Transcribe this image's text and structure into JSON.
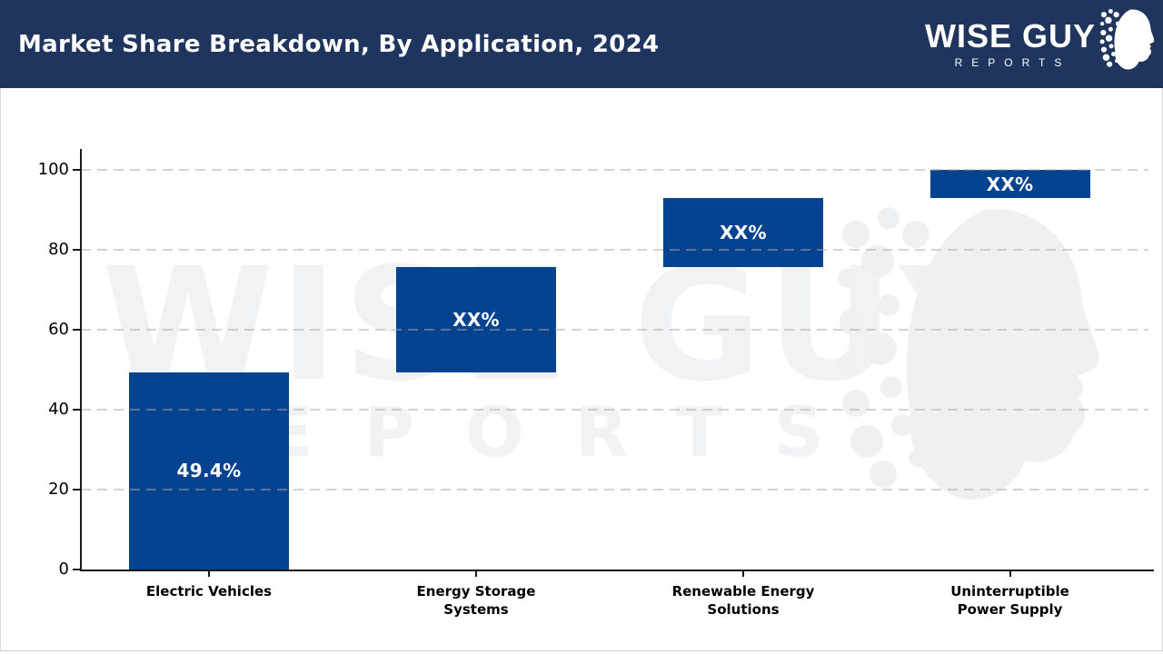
{
  "header": {
    "title": "Market Share Breakdown, By Application, 2024",
    "logo": {
      "name_line": "WISE GUY",
      "sub_line": "REPORTS"
    }
  },
  "watermark": {
    "big_text": "WISE GUY.",
    "sub_text": "REPORTS"
  },
  "colors": {
    "header_bg": "#1f355e",
    "bar_blue": "#05428f",
    "axis": "#1a1a1a",
    "watermark_gray": "#f1f2f4"
  },
  "chart_data": {
    "type": "bar",
    "variant": "waterfall",
    "title": "Market Share Breakdown, By Application, 2024",
    "ylim": [
      0,
      100
    ],
    "yticks": [
      0,
      20,
      40,
      60,
      80,
      100
    ],
    "grid": "dashed horizontal gridlines at each y tick",
    "legend": "none",
    "bar_color": "#05428f",
    "categories": [
      {
        "name": "Electric Vehicles",
        "label_lines": [
          "Electric Vehicles"
        ],
        "bar_label": "49.4%",
        "start": 0,
        "end": 49.4,
        "value_shown": true
      },
      {
        "name": "Energy Storage Systems",
        "label_lines": [
          "Energy Storage",
          "Systems"
        ],
        "bar_label": "XX%",
        "start": 49.4,
        "end": 75.6,
        "value_shown": false
      },
      {
        "name": "Renewable Energy Solutions",
        "label_lines": [
          "Renewable Energy",
          "Solutions"
        ],
        "bar_label": "XX%",
        "start": 75.6,
        "end": 92.9,
        "value_shown": false
      },
      {
        "name": "Uninterruptible Power Supply",
        "label_lines": [
          "Uninterruptible",
          "Power Supply"
        ],
        "bar_label": "XX%",
        "start": 92.9,
        "end": 100,
        "value_shown": false
      }
    ],
    "cumulative_estimated": [
      49.4,
      75.6,
      92.9,
      100
    ]
  }
}
